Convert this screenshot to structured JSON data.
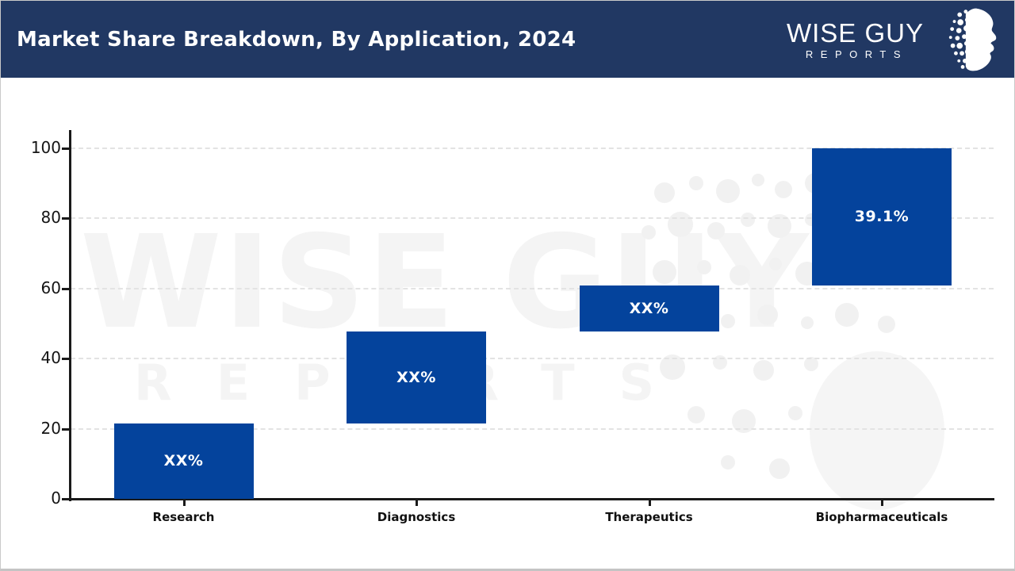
{
  "header": {
    "title": "Market Share Breakdown, By Application, 2024",
    "logo": {
      "line1": "WISE GUY",
      "line2": "REPORTS"
    }
  },
  "watermark": {
    "line1": "WISE GUY",
    "line2": "REPORTS"
  },
  "colors": {
    "header_bg": "#213863",
    "bar_fill": "#04439c",
    "axis": "#1a1a1a",
    "gridline": "#e3e3e3",
    "watermark": "#f4f4f4",
    "bar_label_text": "#ffffff"
  },
  "chart_data": {
    "type": "bar",
    "subtype": "waterfall",
    "title": "Market Share Breakdown, By Application, 2024",
    "xlabel": "",
    "ylabel": "",
    "ylim": [
      0,
      106
    ],
    "yticks": [
      0,
      20,
      40,
      60,
      80,
      100
    ],
    "grid": "horizontal-dashed",
    "legend": "none",
    "categories": [
      "Research",
      "Diagnostics",
      "Therapeutics",
      "Biopharmaceuticals"
    ],
    "values": [
      21.5,
      26.2,
      13.2,
      39.1
    ],
    "segments": [
      {
        "category": "Research",
        "start": 0,
        "end": 21.5,
        "label": "XX%"
      },
      {
        "category": "Diagnostics",
        "start": 21.5,
        "end": 47.7,
        "label": "XX%"
      },
      {
        "category": "Therapeutics",
        "start": 47.7,
        "end": 60.9,
        "label": "XX%"
      },
      {
        "category": "Biopharmaceuticals",
        "start": 60.9,
        "end": 100,
        "label": "39.1%"
      }
    ]
  }
}
